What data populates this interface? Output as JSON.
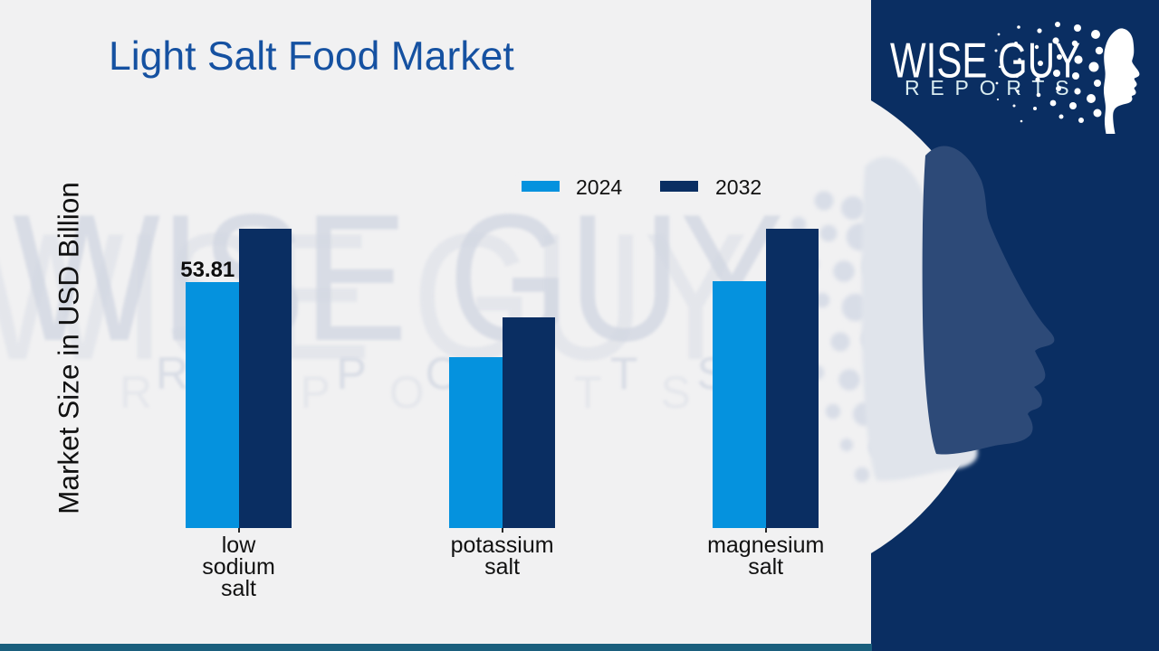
{
  "page": {
    "background_color": "#f1f1f2",
    "bottom_bar_color": "#1a5f7d"
  },
  "header": {
    "title": "Light Salt Food Market",
    "title_color": "#1551a1"
  },
  "brand": {
    "name_line1": "WISE GUY",
    "name_line2": "REPORTS",
    "panel_color": "#0a2e62",
    "logo_text_color": "#ffffff",
    "logo_reports_color": "#d9ecf0",
    "face_silhouette_color": "#2d4a78",
    "watermark_color": "#d2d7e2",
    "watermark_dot_color": "#d8dde7"
  },
  "watermark": {
    "line1": "WISE GUY",
    "line2": "REPORTS"
  },
  "chart_data": {
    "type": "bar",
    "title": "Light Salt Food Market",
    "xlabel": "",
    "ylabel": "Market Size in USD Billion",
    "categories": [
      "low sodium salt",
      "potassium salt",
      "magnesium salt"
    ],
    "series": [
      {
        "name": "2024",
        "color": "#0592de",
        "values": [
          53.81,
          37.4,
          54.0
        ]
      },
      {
        "name": "2032",
        "color": "#0a2e62",
        "values": [
          65.4,
          46.1,
          65.4
        ]
      }
    ],
    "annotations": [
      {
        "series_index": 0,
        "category_index": 0,
        "text": "53.81"
      }
    ],
    "ylim": [
      0,
      73
    ],
    "grid": false,
    "legend_position": "top-center"
  }
}
